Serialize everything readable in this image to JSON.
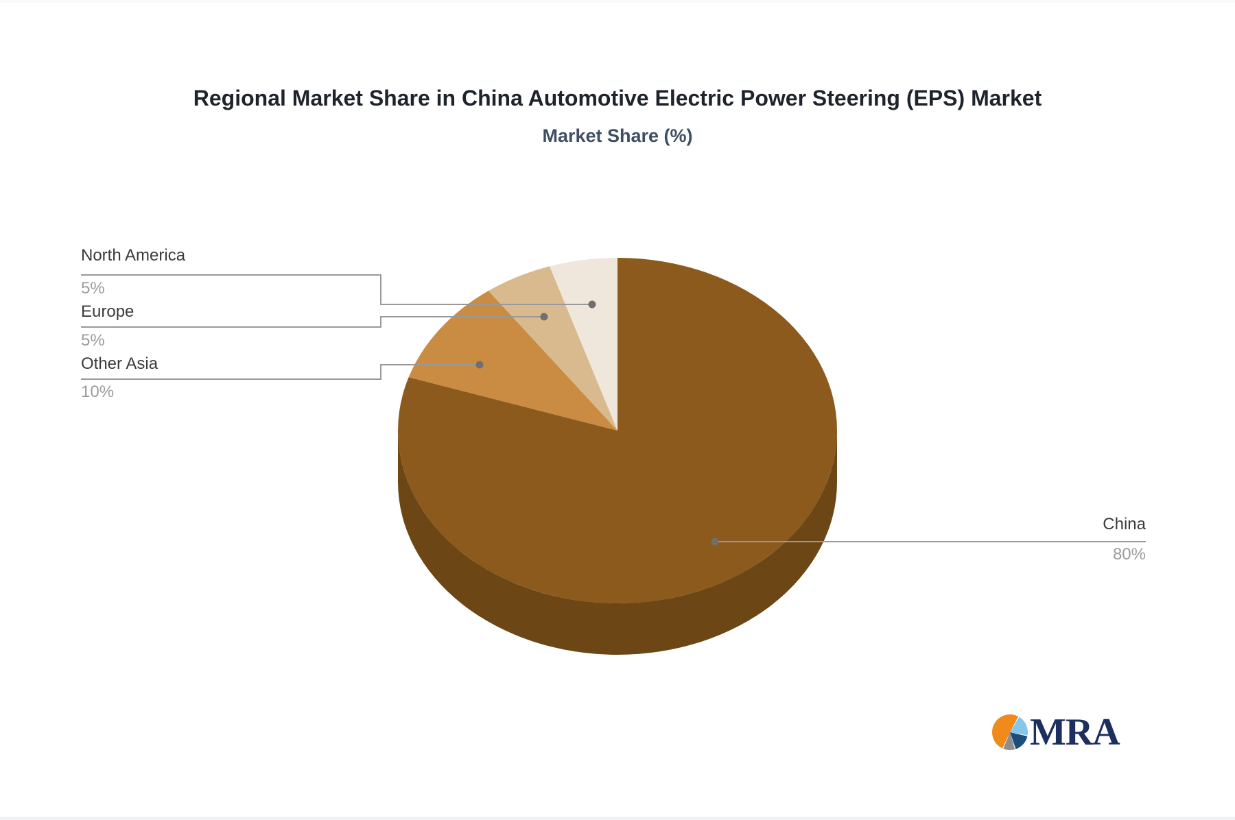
{
  "header": {
    "title": "Regional Market Share in China Automotive Electric Power Steering (EPS) Market",
    "subtitle": "Market Share (%)"
  },
  "chart_data": {
    "type": "pie",
    "three_d": true,
    "start_angle_deg": 0,
    "direction": "clockwise",
    "unit": "%",
    "title": "Regional Market Share in China Automotive Electric Power Steering (EPS) Market",
    "subtitle": "Market Share (%)",
    "series": [
      {
        "key": "china",
        "label": "China",
        "value": 80,
        "value_label": "80%",
        "color": "#8B5A1C",
        "side_color": "#6C4614"
      },
      {
        "key": "other-asia",
        "label": "Other Asia",
        "value": 10,
        "value_label": "10%",
        "color": "#CA8C42"
      },
      {
        "key": "europe",
        "label": "Europe",
        "value": 5,
        "value_label": "5%",
        "color": "#D9BA8F"
      },
      {
        "key": "north-america",
        "label": "North America",
        "value": 5,
        "value_label": "5%",
        "color": "#EFE7DC"
      }
    ],
    "legend_position": "none",
    "labels_style": "callout-lines-with-dots",
    "connector_color": "#999999",
    "dot_color": "#6f6f6f",
    "label_name_color": "#3b3b3b",
    "label_value_color": "#9b9b9b"
  },
  "logo": {
    "text": "MRA",
    "icon": "pie-chart-icon",
    "icon_colors": {
      "orange": "#F08A1D",
      "light_blue": "#85C6EA",
      "navy": "#1C4E79",
      "gray": "#8E8E8E"
    },
    "text_color": "#1C2F5E"
  }
}
